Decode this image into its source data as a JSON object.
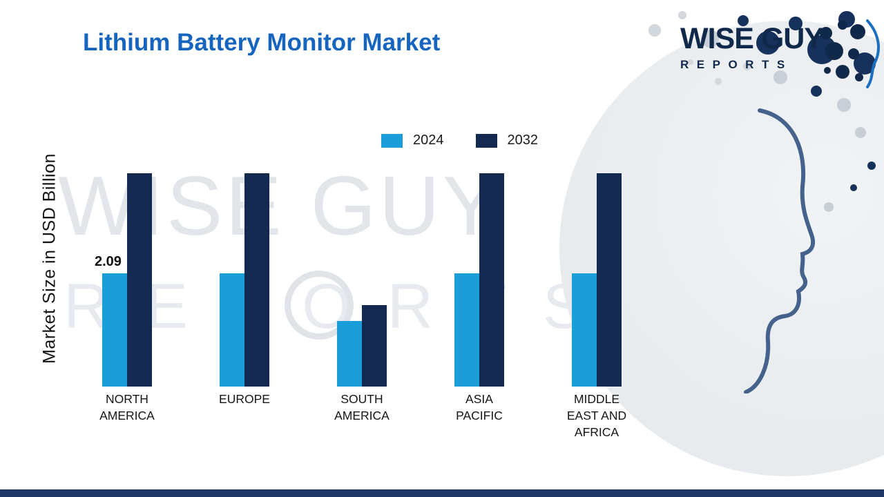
{
  "page": {
    "title": "Lithium Battery Monitor Market",
    "y_axis_label": "Market Size in USD Billion"
  },
  "logo": {
    "name": "WISE GUY",
    "subtitle": "REPORTS"
  },
  "watermark": {
    "line1": "WISE GUY",
    "line2": "REPORTS"
  },
  "legend": {
    "items": [
      {
        "label": "2024",
        "color": "#1a9dd9"
      },
      {
        "label": "2032",
        "color": "#13294f"
      }
    ]
  },
  "chart_data": {
    "type": "bar",
    "title": "Lithium Battery Monitor Market",
    "xlabel": "",
    "ylabel": "Market Size in USD Billion",
    "categories": [
      "NORTH AMERICA",
      "EUROPE",
      "SOUTH AMERICA",
      "ASIA PACIFIC",
      "MIDDLE EAST AND AFRICA"
    ],
    "series": [
      {
        "name": "2024",
        "color": "#1a9dd9",
        "values": [
          2.09,
          2.09,
          1.21,
          2.09,
          2.09
        ]
      },
      {
        "name": "2032",
        "color": "#13294f",
        "values": [
          3.93,
          3.93,
          1.5,
          3.93,
          3.93
        ]
      }
    ],
    "annotation": {
      "text": "2.09",
      "category": "NORTH AMERICA",
      "series": "2024"
    },
    "ylim": [
      0,
      4.2
    ],
    "grid": false,
    "legend_position": "top-right"
  },
  "colors": {
    "title": "#1565c0",
    "bar_2024": "#1a9dd9",
    "bar_2032": "#13294f",
    "bottom_bar": "#1e3765",
    "logo_navy": "#10294b"
  }
}
